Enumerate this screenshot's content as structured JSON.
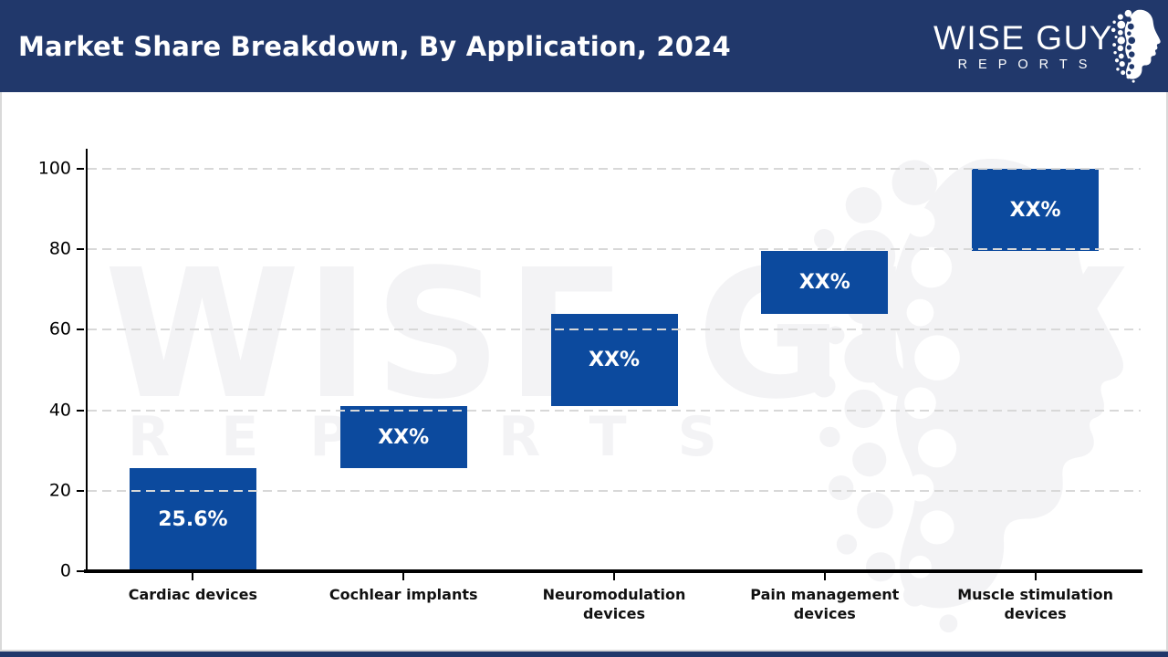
{
  "header": {
    "title": "Market Share Breakdown, By Application, 2024",
    "logo": {
      "wordmark": "WISE GUY",
      "subtext": "REPORTS"
    }
  },
  "watermark": {
    "wordmark": "WISE GUY",
    "subtext": "REPORTS"
  },
  "colors": {
    "header_bg": "#21386b",
    "footer_bg": "#21386b",
    "bar_blue": "#0c4a9e",
    "gridline": "#d8d8d8",
    "axis": "#000000",
    "bar_label_text": "#ffffff",
    "watermark_gray": "#f3f3f5",
    "card_border": "#d9d9d9"
  },
  "chart_data": {
    "type": "bar",
    "subtype": "cumulative-waterfall",
    "title": "Market Share Breakdown, By Application, 2024",
    "categories": [
      "Cardiac devices",
      "Cochlear implants",
      "Neuromodulation devices",
      "Pain management devices",
      "Muscle stimulation devices"
    ],
    "category_label_lines": [
      [
        "Cardiac devices"
      ],
      [
        "Cochlear implants"
      ],
      [
        "Neuromodulation",
        "devices"
      ],
      [
        "Pain management",
        "devices"
      ],
      [
        "Muscle stimulation",
        "devices"
      ]
    ],
    "segments": [
      {
        "category": "Cardiac devices",
        "start": 0,
        "end": 25.6,
        "label": "25.6%"
      },
      {
        "category": "Cochlear implants",
        "start": 25.6,
        "end": 41.0,
        "label": "XX%"
      },
      {
        "category": "Neuromodulation devices",
        "start": 41.0,
        "end": 64.0,
        "label": "XX%"
      },
      {
        "category": "Pain management devices",
        "start": 64.0,
        "end": 79.5,
        "label": "XX%"
      },
      {
        "category": "Muscle stimulation devices",
        "start": 79.5,
        "end": 100,
        "label": "XX%"
      }
    ],
    "y_ticks": [
      0,
      20,
      40,
      60,
      80,
      100
    ],
    "ylim": [
      0,
      105
    ],
    "xlabel": "",
    "ylabel": "",
    "grid": "horizontal-dashed",
    "legend": "none",
    "bar_color": "#0c4a9e"
  }
}
